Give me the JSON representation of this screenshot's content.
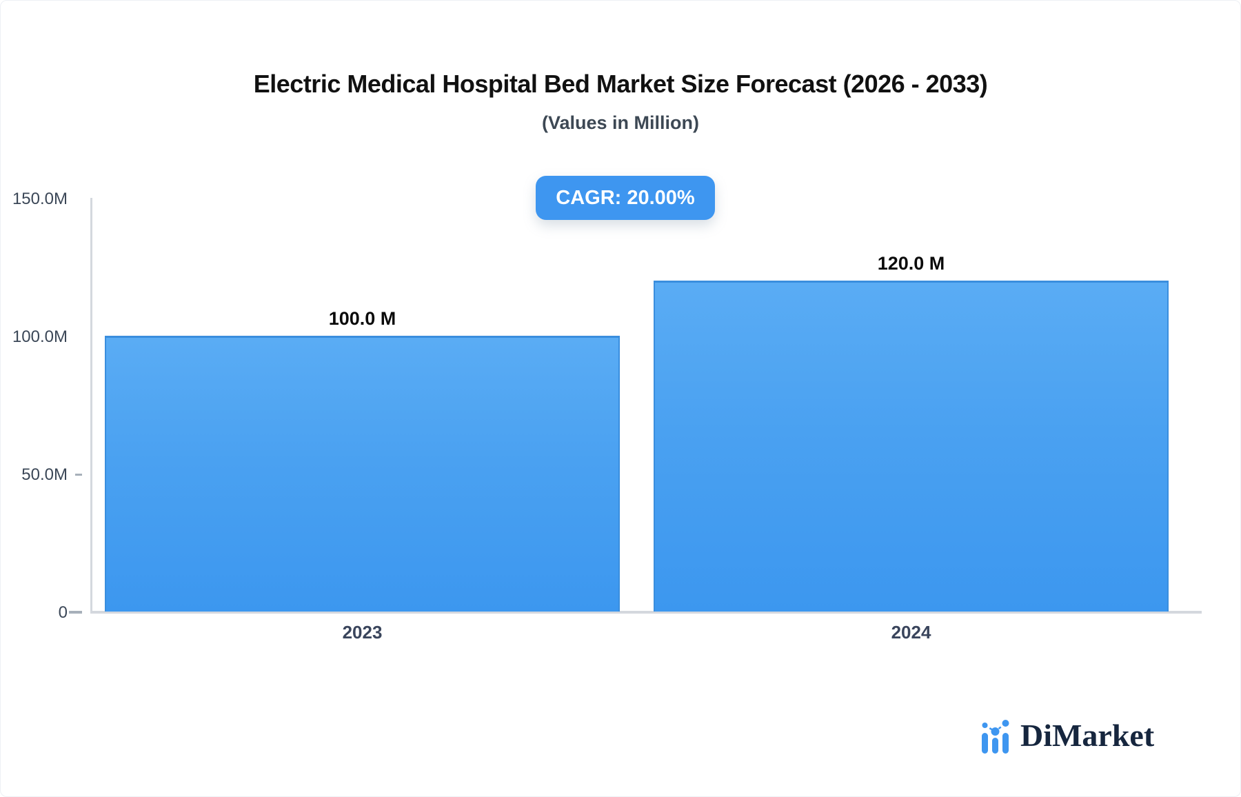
{
  "chart_data": {
    "type": "bar",
    "title": "Electric Medical Hospital Bed Market Size Forecast (2026 - 2033)",
    "subtitle": "(Values in Million)",
    "cagr_badge": "CAGR: 20.00%",
    "cagr_value": "20.00%",
    "categories": [
      "2023",
      "2024"
    ],
    "values": [
      100,
      120
    ],
    "value_labels": [
      "100.0 M",
      "120.0 M"
    ],
    "unit": "Million",
    "xlabel": "",
    "ylabel": "",
    "ylim": [
      0,
      150
    ],
    "y_tick_labels": [
      "150.0M",
      "100.0M",
      "50.0M",
      "0"
    ],
    "y_tick_values": [
      150,
      100,
      50,
      0
    ],
    "grid": "off",
    "legend": "none"
  },
  "branding": {
    "logo_text": "DiMarket",
    "logo_icon": "mini-bar-chart-icon"
  },
  "colors": {
    "bar_fill_top": "#5aacf4",
    "bar_fill_bottom": "#3c97ef",
    "bar_border": "#3a8ede",
    "badge_bg": "#3e96f0",
    "badge_text": "#ffffff",
    "axis_line": "#d4d8de",
    "tick_mark": "#a7b0ba",
    "title_text": "#111111",
    "subtitle_text": "#3d4854",
    "axis_label_text": "#3b4757",
    "value_label_text": "#0b0b0b",
    "logo_text_color": "#16263e",
    "logo_icon_blue": "#3e96f0"
  }
}
